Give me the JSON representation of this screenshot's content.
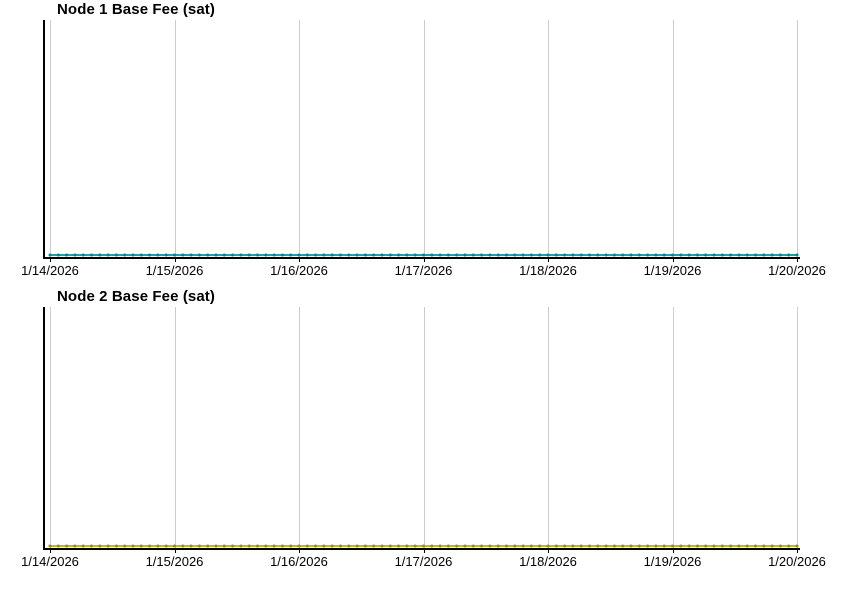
{
  "colors": {
    "background": "#ffffff",
    "axis": "#000000",
    "gridline": "#cccccc",
    "text": "#000000"
  },
  "chart_data": [
    {
      "type": "line",
      "title": "Node 1 Base Fee (sat)",
      "x": [
        "1/14/2026",
        "1/15/2026",
        "1/16/2026",
        "1/17/2026",
        "1/18/2026",
        "1/19/2026",
        "1/20/2026"
      ],
      "values": [
        0,
        0,
        0,
        0,
        0,
        0,
        0
      ],
      "xlabel": "",
      "ylabel": "",
      "ylim": [
        0,
        1
      ],
      "grid": "vertical-only",
      "legend": "none",
      "line_color": "#1ba0b0",
      "marker_color": "#0e7f8d"
    },
    {
      "type": "line",
      "title": "Node 2 Base Fee (sat)",
      "x": [
        "1/14/2026",
        "1/15/2026",
        "1/16/2026",
        "1/17/2026",
        "1/18/2026",
        "1/19/2026",
        "1/20/2026"
      ],
      "values": [
        0,
        0,
        0,
        0,
        0,
        0,
        0
      ],
      "xlabel": "",
      "ylabel": "",
      "ylim": [
        0,
        1
      ],
      "grid": "vertical-only",
      "legend": "none",
      "line_color": "#bcbd22",
      "marker_color": "#8f9119"
    }
  ]
}
